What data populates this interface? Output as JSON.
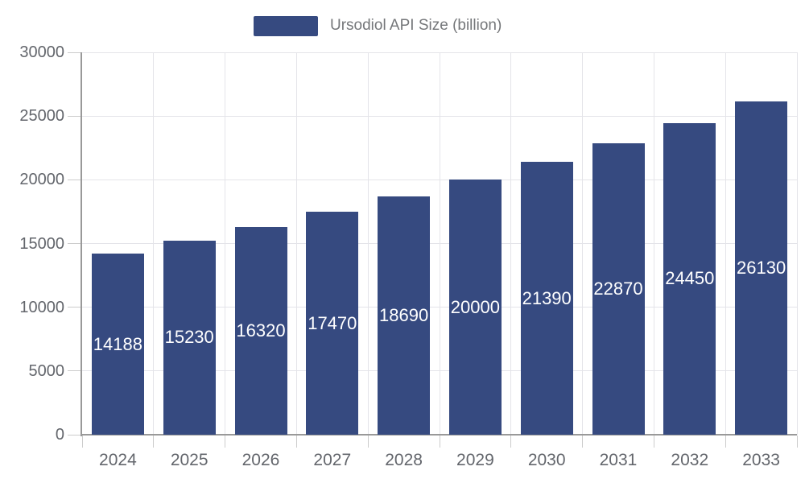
{
  "legend": {
    "items": [
      {
        "label": "Ursodiol API Size (billion)",
        "swatch_color": "#364A80"
      }
    ]
  },
  "chart_data": {
    "type": "bar",
    "title": "",
    "categories": [
      "2024",
      "2025",
      "2026",
      "2027",
      "2028",
      "2029",
      "2030",
      "2031",
      "2032",
      "2033"
    ],
    "series": [
      {
        "name": "Ursodiol API Size (billion)",
        "values": [
          14188,
          15230,
          16320,
          17470,
          18690,
          20000,
          21390,
          22870,
          24450,
          26130
        ],
        "color": "#364A80"
      }
    ],
    "xlabel": "",
    "ylabel": "",
    "ylim": [
      0,
      30000
    ],
    "yticks": [
      0,
      5000,
      10000,
      15000,
      20000,
      25000,
      30000
    ],
    "grid": true,
    "legend_position": "top-center",
    "value_labels": "inside-center",
    "value_label_color": "#ffffff"
  },
  "colors": {
    "background": "#ffffff",
    "bar": "#364A80",
    "grid_line": "#E4E4E9",
    "axis_line": "#999999",
    "tick": "#CCCCCC",
    "axis_label": "#63666C",
    "legend_text": "#75777A"
  }
}
